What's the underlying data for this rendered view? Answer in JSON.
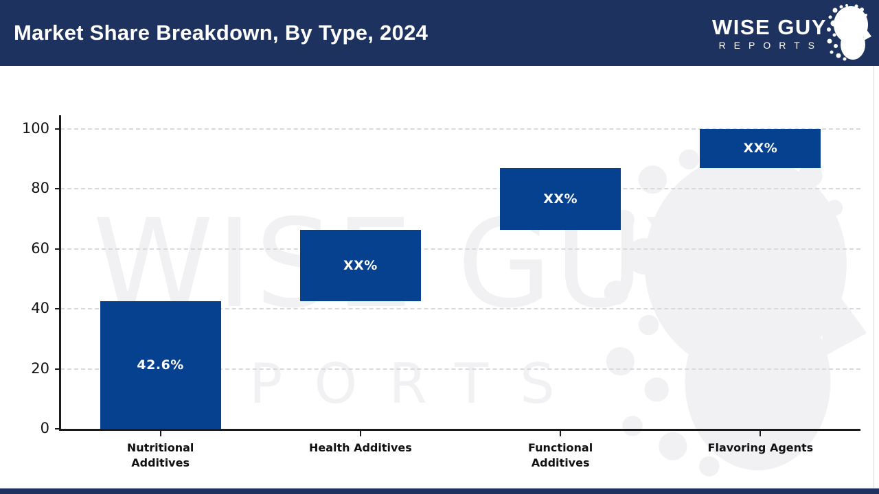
{
  "header": {
    "title": "Market Share Breakdown, By Type, 2024",
    "logo": {
      "line1": "WISE GUY",
      "line2": "REPORTS"
    }
  },
  "watermark": {
    "line1": "WISE GUY",
    "line2": "REPORTS"
  },
  "chart_data": {
    "type": "bar",
    "subtype": "waterfall",
    "title": "Market Share Breakdown, By Type, 2024",
    "xlabel": "",
    "ylabel": "",
    "categories": [
      "Nutritional\nAdditives",
      "Health Additives",
      "Functional\nAdditives",
      "Flavoring Agents"
    ],
    "segments": [
      {
        "category": "Nutritional Additives",
        "start": 0,
        "end": 42.6,
        "label": "42.6%"
      },
      {
        "category": "Health Additives",
        "start": 42.6,
        "end": 66.4,
        "label": "XX%"
      },
      {
        "category": "Functional Additives",
        "start": 66.4,
        "end": 87.0,
        "label": "XX%"
      },
      {
        "category": "Flavoring Agents",
        "start": 87.0,
        "end": 100.0,
        "label": "XX%"
      }
    ],
    "ylim": [
      0,
      100
    ],
    "yticks": [
      0,
      20,
      40,
      60,
      80,
      100
    ],
    "grid": "horizontal-dashed",
    "legend": "none",
    "bar_color": "#05418F",
    "bar_label_color": "#FFFFFF"
  },
  "colors": {
    "header_bg": "#1E3260",
    "footer_bg": "#1E3260",
    "bar": "#05418F",
    "grid": "#D9D9D9",
    "axis": "#1B1B1B",
    "watermark": "#F1F1F4",
    "title_text": "#FFFFFF"
  }
}
